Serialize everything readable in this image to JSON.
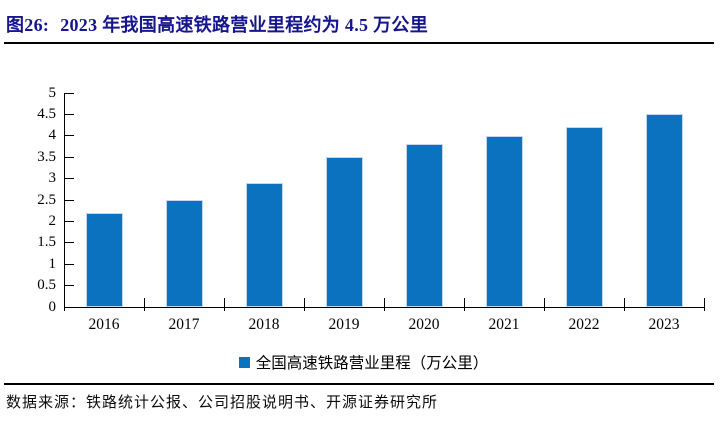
{
  "header": {
    "figure_label": "图26:",
    "title": "2023 年我国高速铁路营业里程约为 4.5 万公里"
  },
  "chart_data": {
    "type": "bar",
    "title": "2023 年我国高速铁路营业里程约为 4.5 万公里",
    "categories": [
      "2016",
      "2017",
      "2018",
      "2019",
      "2020",
      "2021",
      "2022",
      "2023"
    ],
    "values": [
      2.2,
      2.5,
      2.9,
      3.5,
      3.8,
      4.0,
      4.2,
      4.5
    ],
    "series_name": "全国高速铁路营业里程（万公里）",
    "xlabel": "",
    "ylabel": "",
    "ylim": [
      0,
      5
    ],
    "ytick_step": 0.5,
    "yticks": [
      "0",
      "0.5",
      "1",
      "1.5",
      "2",
      "2.5",
      "3",
      "3.5",
      "4",
      "4.5",
      "5"
    ],
    "grid": false,
    "legend_position": "bottom"
  },
  "legend": {
    "label": "全国高速铁路营业里程（万公里）"
  },
  "footer": {
    "source": "数据来源：铁路统计公报、公司招股说明书、开源证券研究所"
  },
  "colors": {
    "title": "#15158c",
    "bar": "#0b72c0",
    "axis": "#000000",
    "divider": "#000000",
    "text": "#000000"
  }
}
